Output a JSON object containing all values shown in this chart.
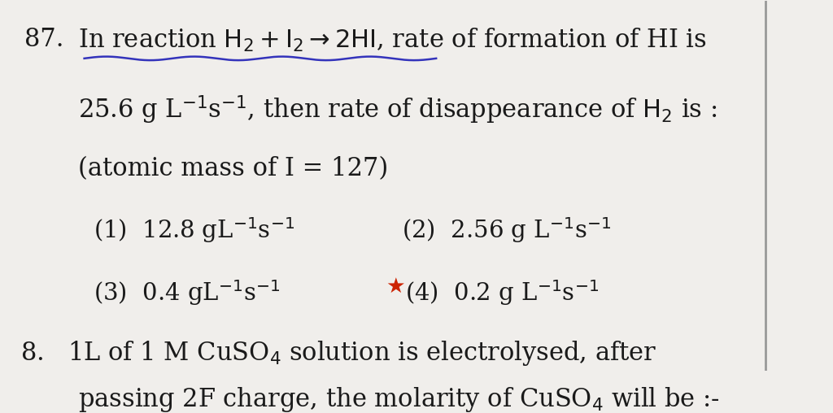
{
  "background_color": "#f0eeeb",
  "text_color": "#1a1a1a",
  "star_color": "#cc2200",
  "underline_color": "#3333bb",
  "right_border_color": "#999999",
  "font_size_main": 22,
  "font_size_options": 21,
  "font_size_q8": 22
}
